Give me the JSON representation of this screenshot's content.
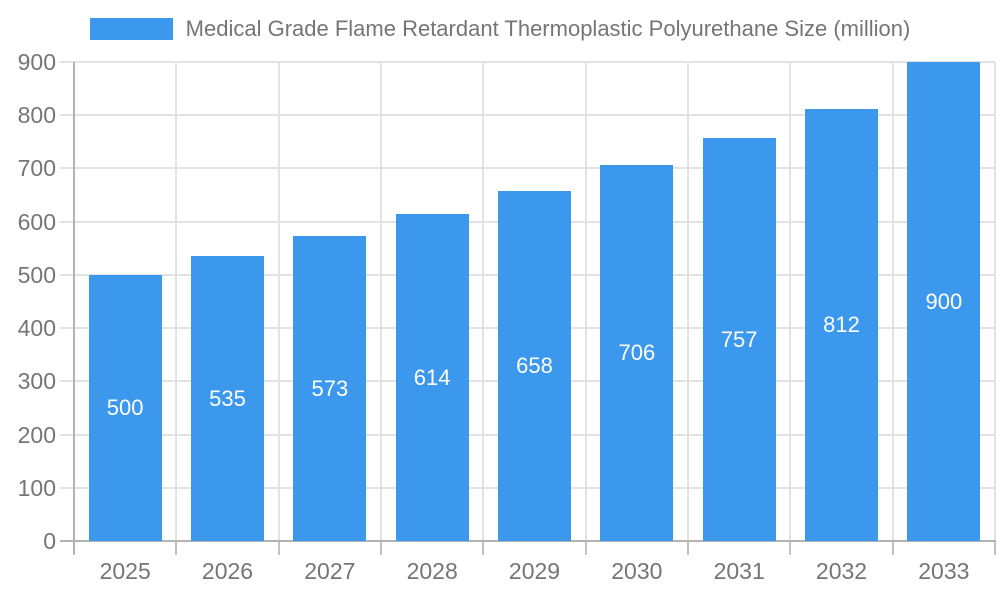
{
  "legend": {
    "label": "Medical Grade Flame Retardant Thermoplastic Polyurethane Size (million)"
  },
  "chart_data": {
    "type": "bar",
    "title": "Medical Grade Flame Retardant Thermoplastic Polyurethane Size (million)",
    "categories": [
      "2025",
      "2026",
      "2027",
      "2028",
      "2029",
      "2030",
      "2031",
      "2032",
      "2033"
    ],
    "values": [
      500,
      535,
      573,
      614,
      658,
      706,
      757,
      812,
      900
    ],
    "xlabel": "",
    "ylabel": "",
    "ylim": [
      0,
      900
    ],
    "yticks": [
      0,
      100,
      200,
      300,
      400,
      500,
      600,
      700,
      800,
      900
    ],
    "grid": true,
    "legend_position": "top",
    "colors": {
      "bar": "#3B98EC",
      "value_label": "#FFFFFF",
      "axis_text": "#757575",
      "grid_line": "#E3E3E3",
      "axis_line": "#B3B3B3",
      "x_tick": "#C2C2C2"
    }
  }
}
